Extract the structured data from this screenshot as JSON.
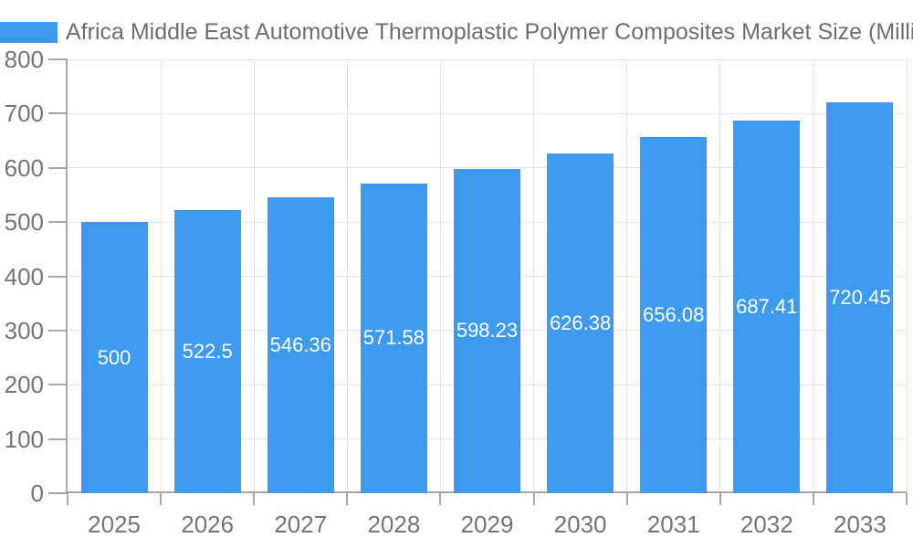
{
  "legend": {
    "series_label": "Africa Middle East Automotive Thermoplastic Polymer Composites Market Size (Million",
    "swatch_color": "#3d9aee"
  },
  "chart_data": {
    "type": "bar",
    "title": "Africa Middle East Automotive Thermoplastic Polymer Composites Market Size (Million",
    "categories": [
      "2025",
      "2026",
      "2027",
      "2028",
      "2029",
      "2030",
      "2031",
      "2032",
      "2033"
    ],
    "values": [
      500,
      522.5,
      546.36,
      571.58,
      598.23,
      626.38,
      656.08,
      687.41,
      720.45
    ],
    "bar_labels": [
      "500",
      "522.5",
      "546.36",
      "571.58",
      "598.23",
      "626.38",
      "656.08",
      "687.41",
      "720.45"
    ],
    "xlabel": "",
    "ylabel": "",
    "ylim": [
      0,
      800
    ],
    "ytick_interval": 100,
    "yticks": [
      "0",
      "100",
      "200",
      "300",
      "400",
      "500",
      "600",
      "700",
      "800"
    ],
    "grid": true,
    "legend_position": "top-left",
    "styles": {
      "bar_color": "#3d9aee",
      "value_label_color": "#ffffff",
      "axis_text_color": "#757575",
      "title_color": "#6e6e6e",
      "grid_color": "#e3e3e3",
      "axis_line_color": "#a6a6a6",
      "tick_color": "#a6a6a6",
      "background": "#ffffff"
    }
  }
}
